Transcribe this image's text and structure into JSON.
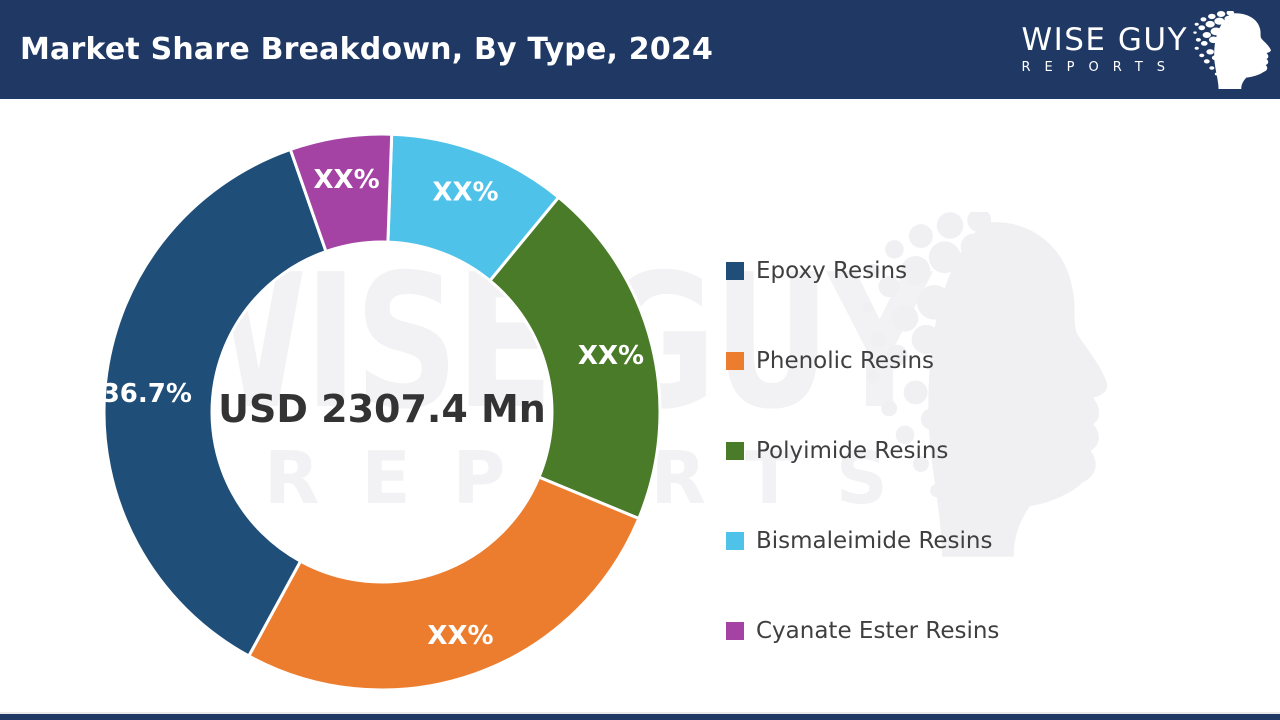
{
  "header": {
    "title": "Market Share Breakdown, By Type, 2024",
    "bar_color": "#1f3864",
    "logo": {
      "wordmark": "WISE GUY",
      "subtext": "REPORTS"
    }
  },
  "chart_data": {
    "type": "pie",
    "subtype": "donut",
    "title": "Market Share Breakdown, By Type, 2024",
    "center_label": "USD 2307.4 Mn",
    "start_angle_deg": 2,
    "direction": "clockwise",
    "inner_radius_ratio": 0.61,
    "legend_position": "right",
    "grid": false,
    "segments": [
      {
        "name": "Bismaleimide Resins",
        "display_label": "XX%",
        "value_pct": 10.4,
        "color": "#4fc2e9"
      },
      {
        "name": "Polyimide Resins",
        "display_label": "XX%",
        "value_pct": 20.3,
        "color": "#4a7b28"
      },
      {
        "name": "Phenolic Resins",
        "display_label": "XX%",
        "value_pct": 26.7,
        "color": "#ec7d2e"
      },
      {
        "name": "Epoxy Resins",
        "display_label": "36.7%",
        "value_pct": 36.7,
        "color": "#1f4e79"
      },
      {
        "name": "Cyanate Ester Resins",
        "display_label": "XX%",
        "value_pct": 5.9,
        "color": "#a443a4"
      }
    ]
  },
  "legend": {
    "items": [
      {
        "label": "Epoxy Resins"
      },
      {
        "label": "Phenolic Resins"
      },
      {
        "label": "Polyimide Resins"
      },
      {
        "label": "Bismaleimide Resins"
      },
      {
        "label": "Cyanate Ester Resins"
      }
    ]
  },
  "watermark": {
    "wordmark": "WISE GUY",
    "subtext": "REPORTS"
  },
  "footer": {
    "bar_color": "#1f3864"
  }
}
